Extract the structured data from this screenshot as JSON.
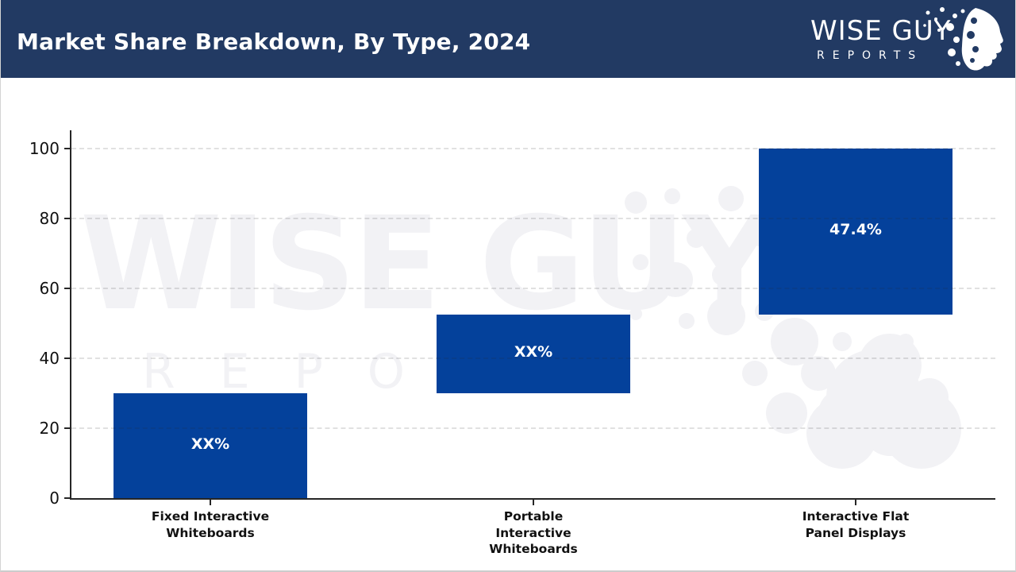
{
  "header": {
    "title": "Market Share Breakdown, By Type, 2024",
    "bg_color": "#223a63",
    "logo": {
      "wordmark": "WISE GUY",
      "subtext": "REPORTS",
      "face_icon": "dotted-face-profile"
    }
  },
  "watermark": {
    "line1": "WISE GUY",
    "line2": "REPORTS"
  },
  "chart_data": {
    "type": "bar",
    "subtype": "waterfall-floating-segments",
    "title": "Market Share Breakdown, By Type, 2024",
    "xlabel": "",
    "ylabel": "",
    "ylim": [
      0,
      100
    ],
    "yticks": [
      0,
      20,
      40,
      60,
      80,
      100
    ],
    "grid": "horizontal-dashed",
    "legend": "none",
    "bar_color": "#04419b",
    "value_label_color": "#ffffff",
    "categories": [
      [
        "Fixed Interactive",
        "Whiteboards"
      ],
      [
        "Portable",
        "Interactive",
        "Whiteboards"
      ],
      [
        "Interactive Flat",
        "Panel Displays"
      ]
    ],
    "segments": [
      {
        "category": "Fixed Interactive Whiteboards",
        "start": 0,
        "end": 30,
        "value": 30,
        "label": "XX%"
      },
      {
        "category": "Portable Interactive Whiteboards",
        "start": 30,
        "end": 52.6,
        "value": 22.6,
        "label": "XX%"
      },
      {
        "category": "Interactive Flat Panel Displays",
        "start": 52.6,
        "end": 100,
        "value": 47.4,
        "label": "47.4%"
      }
    ]
  }
}
